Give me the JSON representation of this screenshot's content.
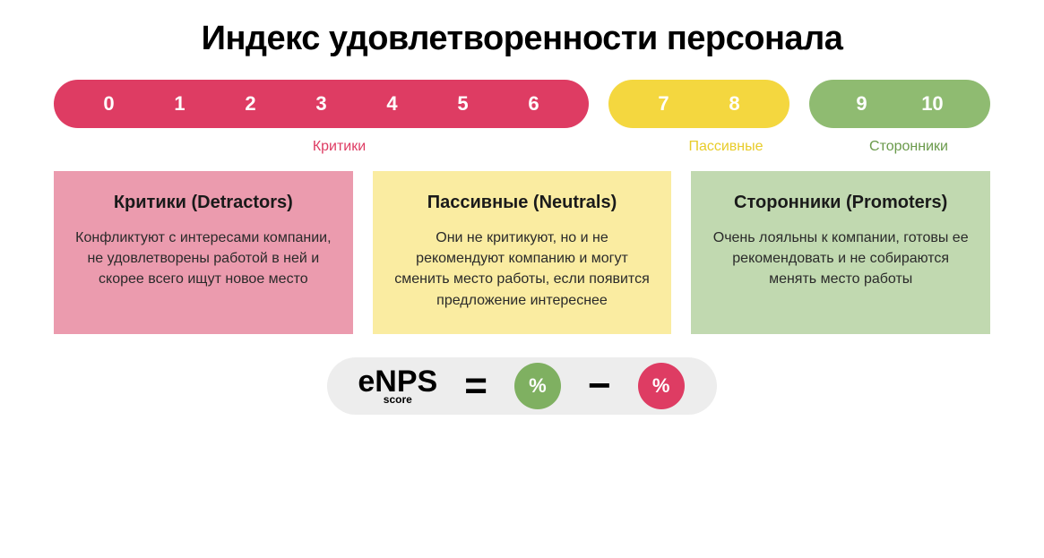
{
  "title": "Индекс удовлетворенности персонала",
  "colors": {
    "detractor_pill": "#de3c63",
    "neutral_pill": "#f4d73f",
    "promoter_pill": "#8fbb71",
    "detractor_card_bg": "#eb9bae",
    "neutral_card_bg": "#faeca1",
    "promoter_card_bg": "#c1d9b0",
    "detractor_label": "#de3c63",
    "neutral_label": "#e8cc2a",
    "promoter_label": "#6a9a4b",
    "formula_bg": "#ededed",
    "formula_promoter_circle": "#7fb061",
    "formula_detractor_circle": "#de3c63"
  },
  "scale": {
    "detractors": {
      "numbers": [
        "0",
        "1",
        "2",
        "3",
        "4",
        "5",
        "6"
      ],
      "label": "Критики"
    },
    "neutrals": {
      "numbers": [
        "7",
        "8"
      ],
      "label": "Пассивные"
    },
    "promoters": {
      "numbers": [
        "9",
        "10"
      ],
      "label": "Сторонники"
    }
  },
  "cards": {
    "detractors": {
      "title": "Критики (Detractors)",
      "text": "Конфликтуют с интересами компании, не удовлетворены работой в ней и скорее всего ищут новое место"
    },
    "neutrals": {
      "title": "Пассивные (Neutrals)",
      "text": "Они не критикуют, но и не рекомендуют компанию и могут сменить место работы, если появится предложение интереснее"
    },
    "promoters": {
      "title": "Сторонники (Promoters)",
      "text": "Очень лояльны к компании, готовы ее рекомендовать и не собираются менять место работы"
    }
  },
  "formula": {
    "label_main": "eNPS",
    "label_sub": "score",
    "equals": "=",
    "minus": "−",
    "promoter_symbol": "%",
    "detractor_symbol": "%"
  }
}
